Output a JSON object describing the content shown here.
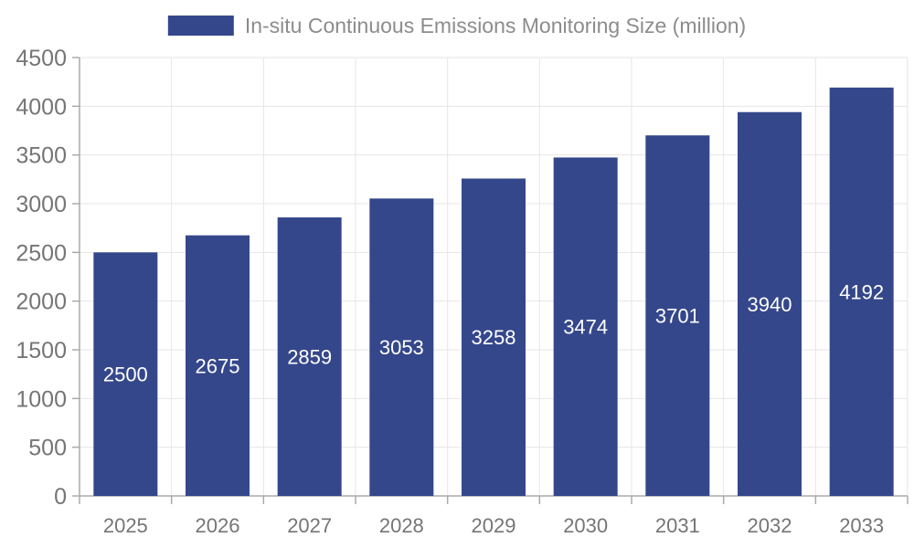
{
  "chart_data": {
    "type": "bar",
    "title": "In-situ Continuous Emissions Monitoring Size (million)",
    "legend_entries": [
      "In-situ Continuous Emissions Monitoring Size (million)"
    ],
    "legend_position": "top-center",
    "categories": [
      "2025",
      "2026",
      "2027",
      "2028",
      "2029",
      "2030",
      "2031",
      "2032",
      "2033"
    ],
    "values": [
      2500,
      2675,
      2859,
      3053,
      3258,
      3474,
      3701,
      3940,
      4192
    ],
    "value_labels_shown": true,
    "value_label_position": "inside-center",
    "xlabel": "",
    "ylabel": "",
    "ylim": [
      0,
      4500
    ],
    "ytick_step": 500,
    "ytick_labels": [
      "0",
      "500",
      "1000",
      "1500",
      "2000",
      "2500",
      "3000",
      "3500",
      "4000",
      "4500"
    ],
    "grid": true,
    "colors": {
      "bar": "#35478B",
      "value_label": "#ffffff",
      "axis_label": "#757575",
      "legend_text": "#8c8c8c",
      "gridline": "#e6e6e6",
      "axis_line": "#aaaaaa"
    }
  }
}
